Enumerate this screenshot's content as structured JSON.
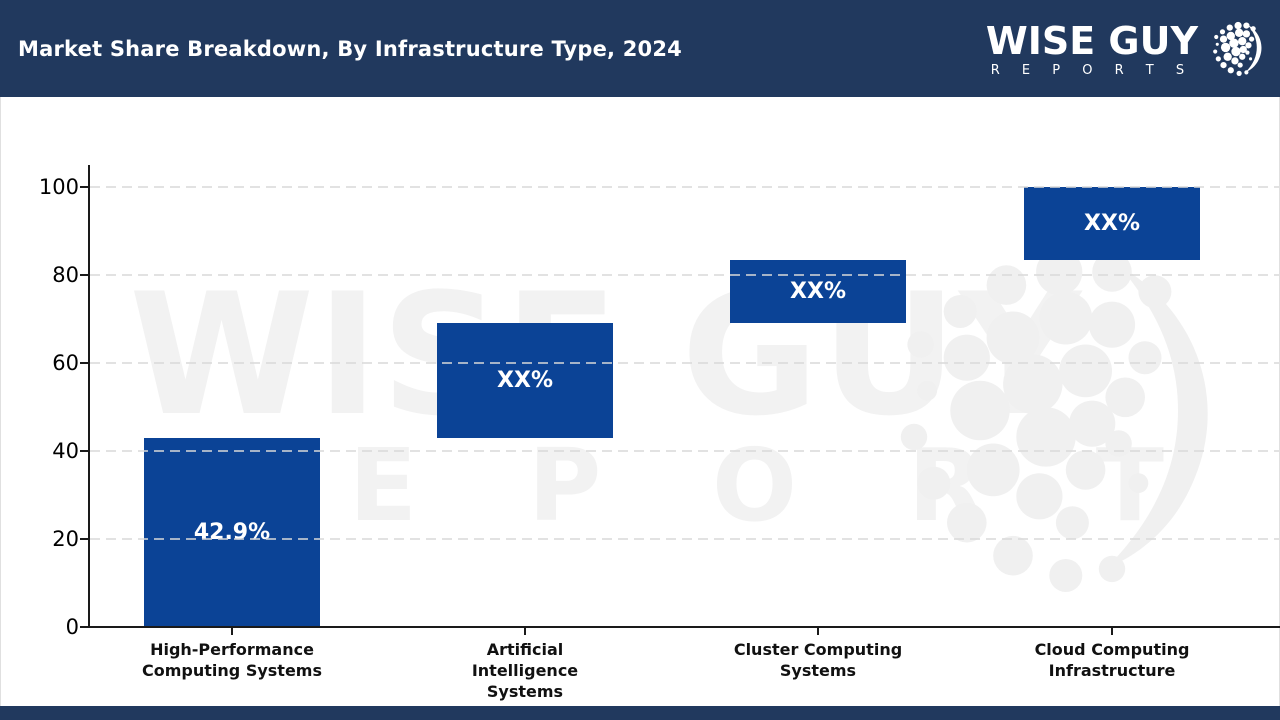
{
  "header": {
    "title": "Market Share Breakdown, By Infrastructure Type, 2024",
    "bg_color": "#21395e",
    "logo": {
      "line1": "WISE GUY",
      "line2": "R E P O R T S"
    }
  },
  "watermark": {
    "line1": "WISE GUY",
    "line2": "R E P O R T S"
  },
  "footer": {
    "bg_color": "#21395e"
  },
  "chart_data": {
    "type": "bar",
    "subtype": "floating-segment (waterfall-style market share breakdown)",
    "title": "Market Share Breakdown, By Infrastructure Type, 2024",
    "xlabel": "",
    "ylabel": "",
    "ylim": [
      0,
      105
    ],
    "yticks": [
      0,
      20,
      40,
      60,
      80,
      100
    ],
    "grid": {
      "show": true,
      "style": "dashed",
      "color": "#d9d9d9",
      "orientation": "horizontal"
    },
    "legend": "none",
    "bar_color": "#0b4396",
    "axis_color": "#1a1a1a",
    "categories": [
      "High-Performance Computing Systems",
      "Artificial Intelligence Systems",
      "Cluster Computing Systems",
      "Cloud Computing Infrastructure"
    ],
    "bars": [
      {
        "category_lines": [
          "High-Performance",
          "Computing Systems"
        ],
        "start": 0,
        "end": 42.9,
        "value": 42.9,
        "bar_label": "42.9%"
      },
      {
        "category_lines": [
          "Artificial",
          "Intelligence",
          "Systems"
        ],
        "start": 42.9,
        "end": 69.1,
        "value": 26.2,
        "bar_label": "XX%"
      },
      {
        "category_lines": [
          "Cluster Computing",
          "Systems"
        ],
        "start": 69.1,
        "end": 83.4,
        "value": 14.3,
        "bar_label": "XX%"
      },
      {
        "category_lines": [
          "Cloud Computing",
          "Infrastructure"
        ],
        "start": 83.4,
        "end": 100,
        "value": 16.6,
        "bar_label": "XX%"
      }
    ]
  }
}
